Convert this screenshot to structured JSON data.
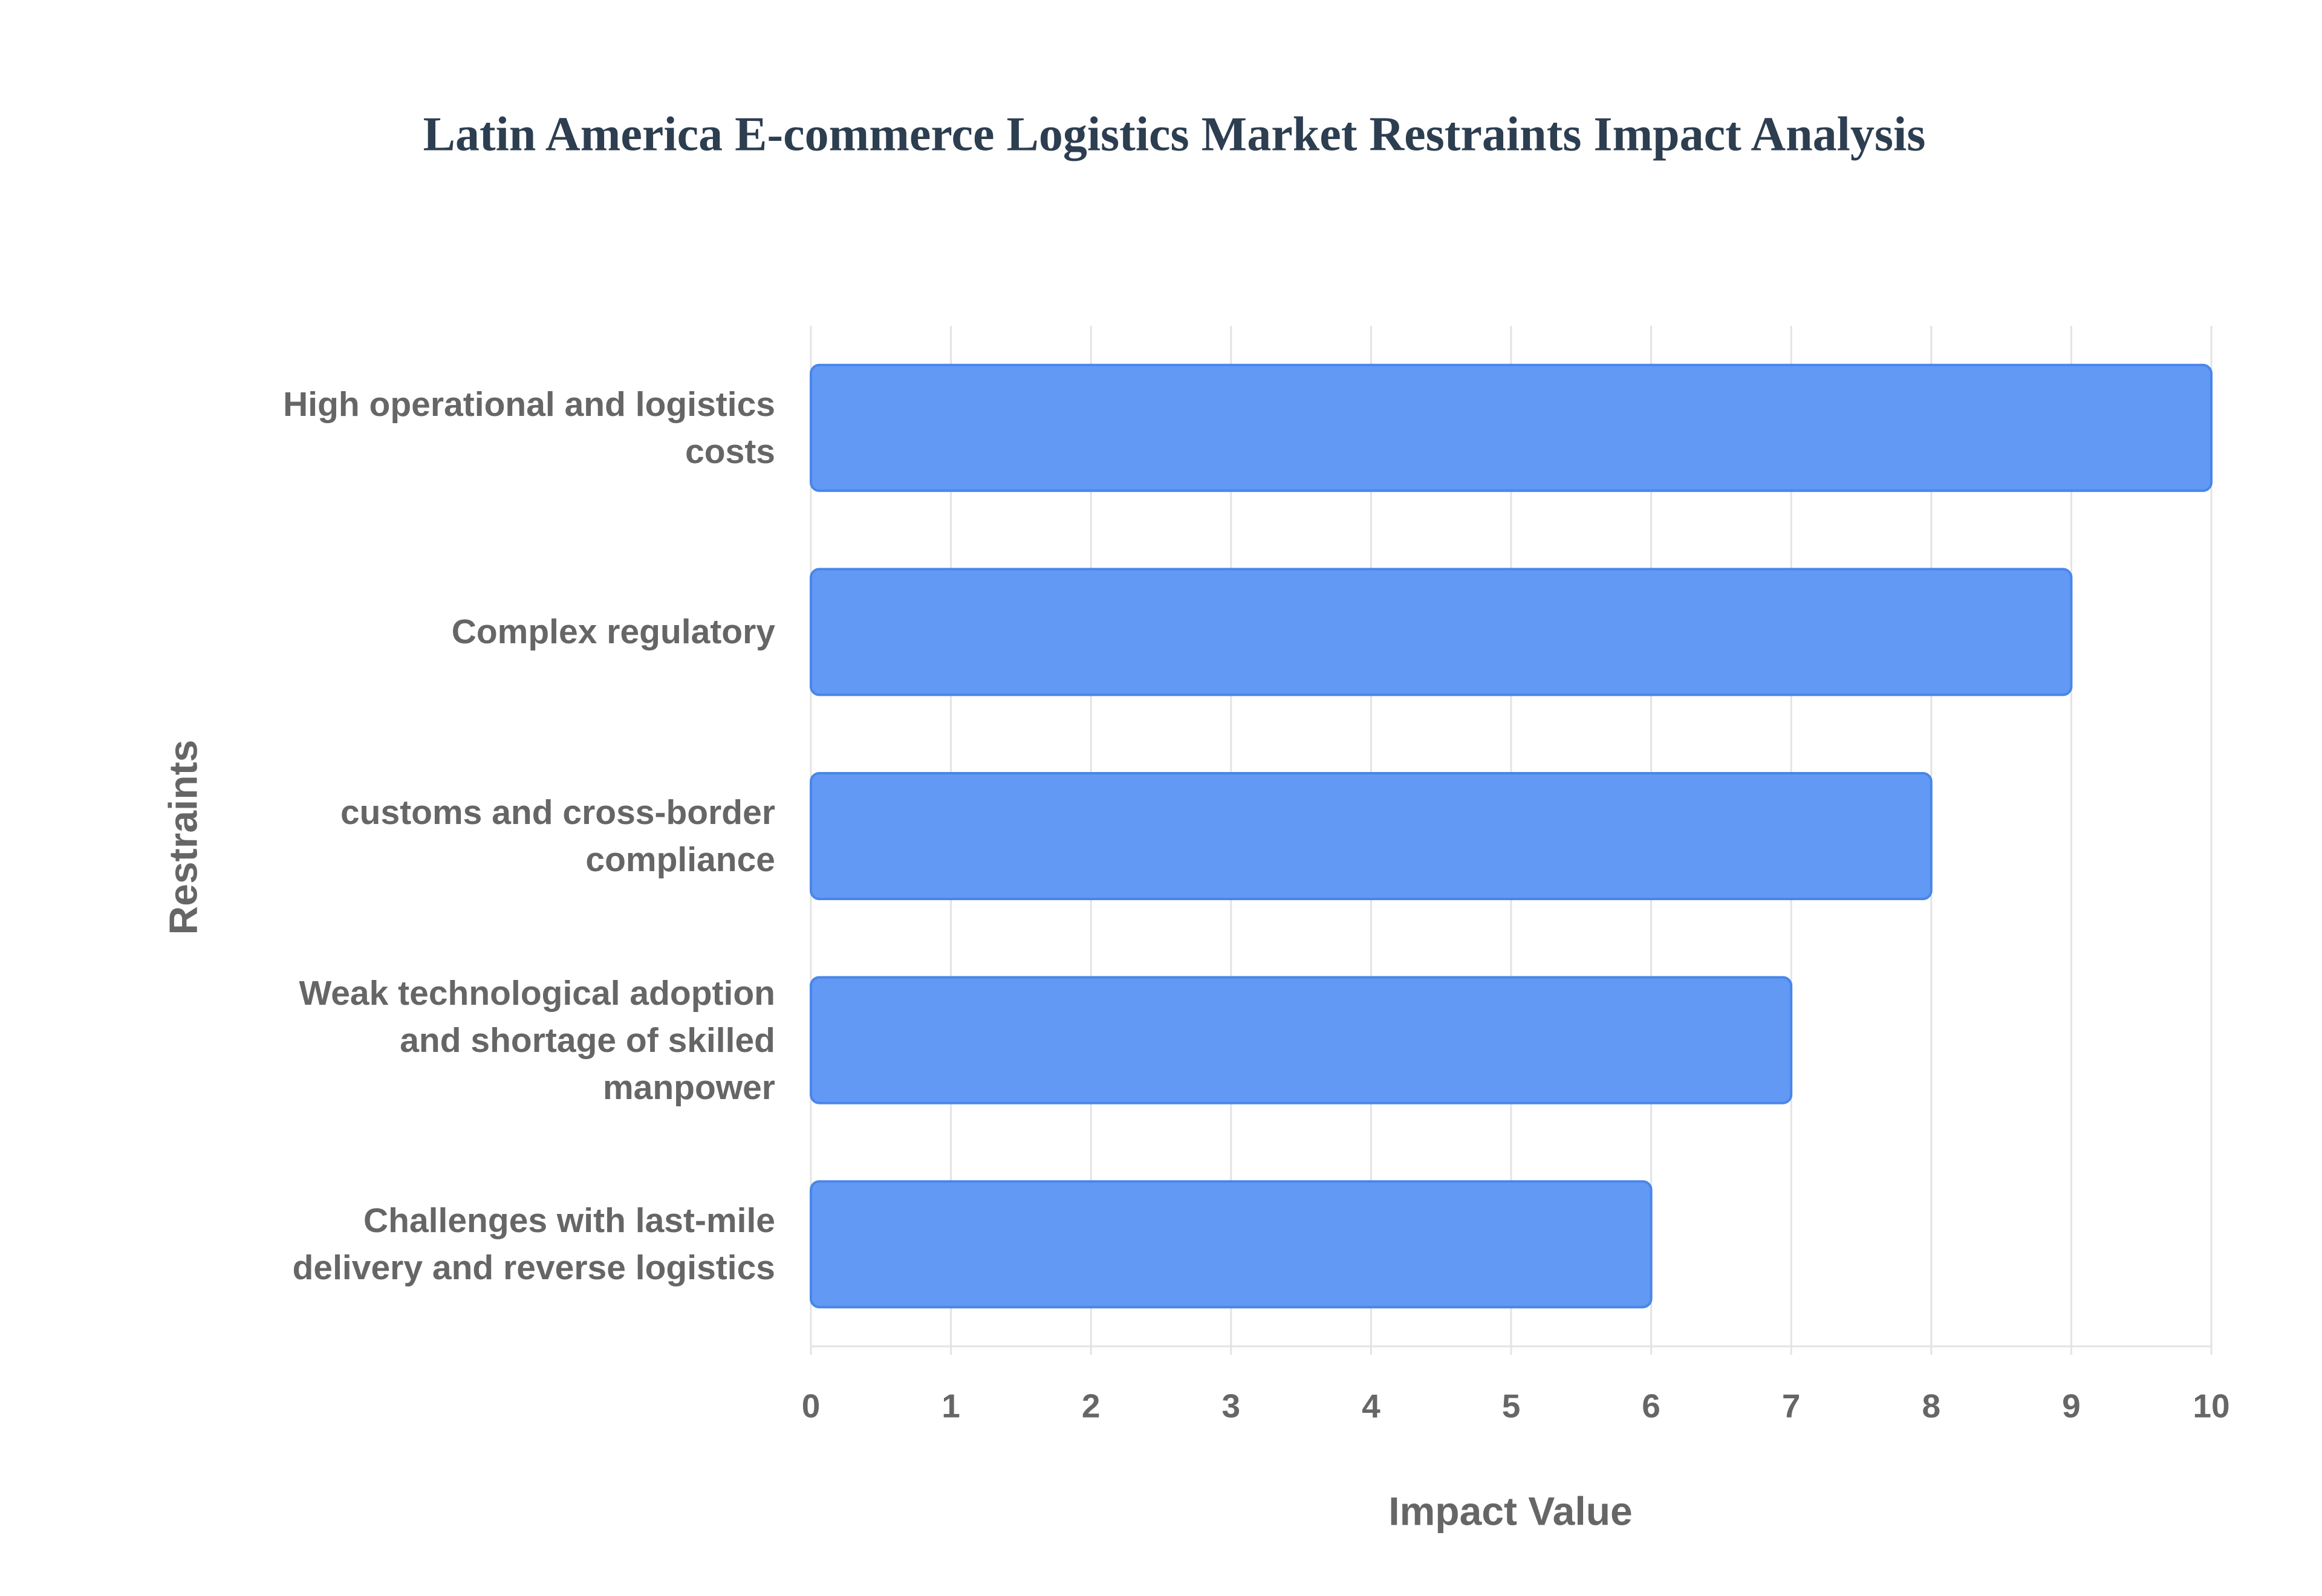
{
  "chart_data": {
    "type": "bar",
    "orientation": "horizontal",
    "title": "Latin America E-commerce Logistics Market Restraints Impact Analysis",
    "x_label": "Impact Value",
    "y_label": "Restraints",
    "categories": [
      "High operational and logistics costs",
      "Complex regulatory",
      "customs and cross-border compliance",
      "Weak technological adoption and shortage of skilled manpower",
      "Challenges with last-mile delivery and reverse logistics"
    ],
    "values": [
      10,
      9,
      8,
      7,
      6
    ],
    "color": "#6199f5",
    "border_color": "#4a86e8",
    "xlim": [
      0,
      10
    ],
    "xticks": [
      0,
      1,
      2,
      3,
      4,
      5,
      6,
      7,
      8,
      9,
      10
    ],
    "grid": true
  }
}
